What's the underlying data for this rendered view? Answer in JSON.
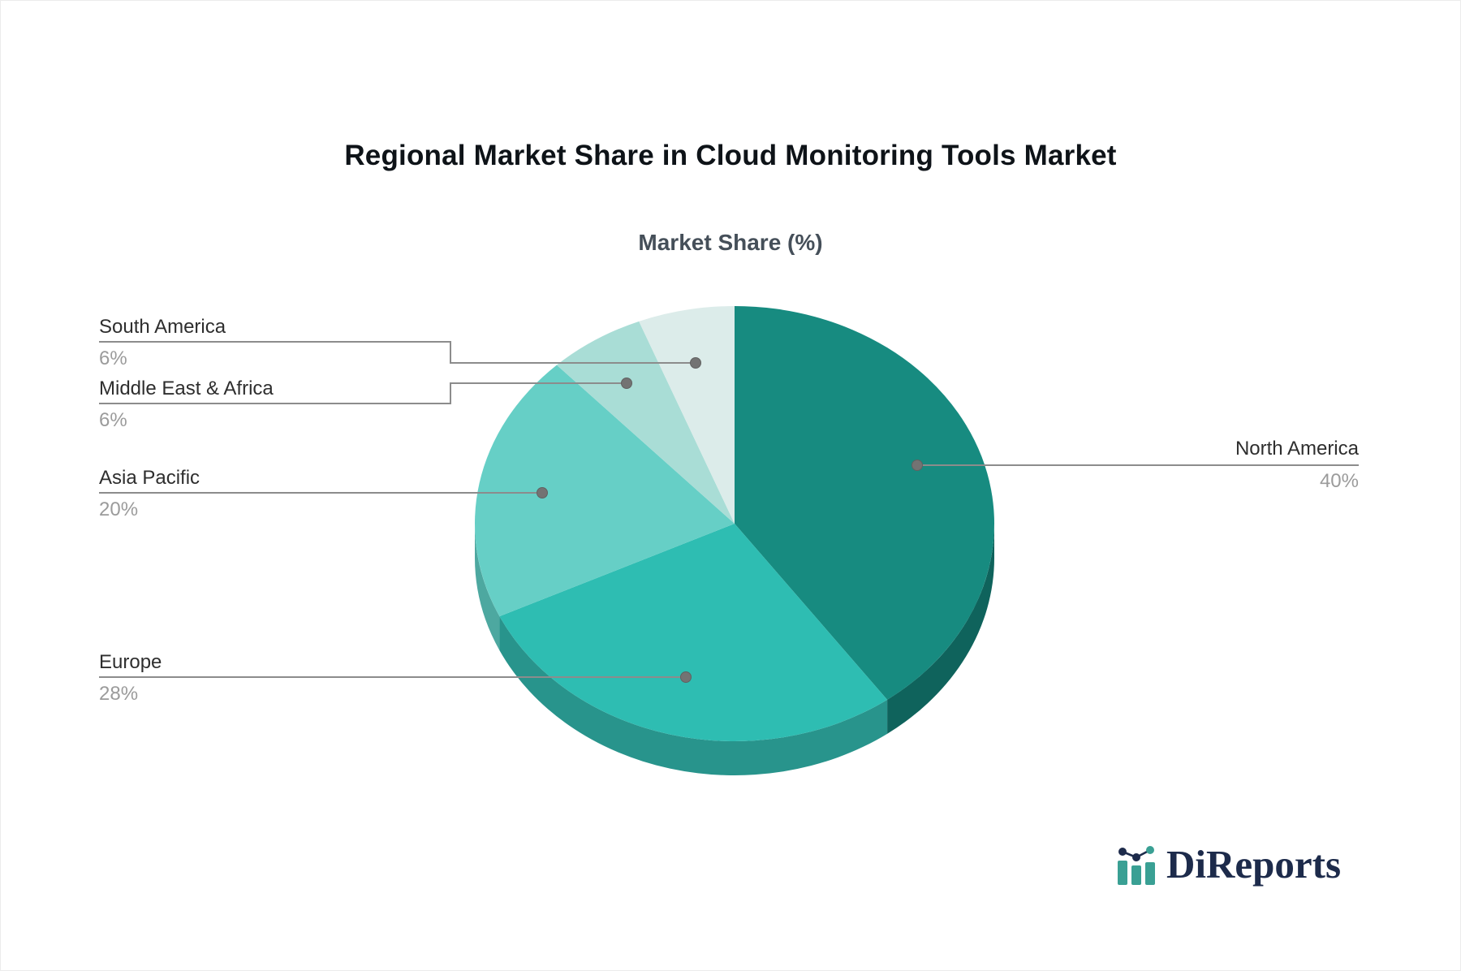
{
  "title": "Regional Market Share in Cloud Monitoring Tools Market",
  "subtitle": "Market Share (%)",
  "brand": {
    "name": "DiReports"
  },
  "palette": {
    "leader_line": "#8c8c8c",
    "marker_dot": "#737373",
    "label_text": "#2e2e2e",
    "percent_text": "#9b9b9b",
    "title_text": "#0e1318",
    "subtitle_text": "#454f59",
    "brand_navy": "#1d2b4b",
    "brand_teal": "#3aa094"
  },
  "chart_data": {
    "type": "pie",
    "style": "3d",
    "title": "Regional Market Share in Cloud Monitoring Tools Market",
    "subtitle": "Market Share (%)",
    "unit": "%",
    "start_angle_deg": 0,
    "direction": "clockwise",
    "legend": "none",
    "labels_position": "callouts",
    "slices": [
      {
        "label": "North America",
        "value": 40,
        "pct": "40%",
        "color": "#178b80",
        "side": "#0f635c"
      },
      {
        "label": "Europe",
        "value": 28,
        "pct": "28%",
        "color": "#2ebdb2",
        "side": "#28948c"
      },
      {
        "label": "Asia Pacific",
        "value": 20,
        "pct": "20%",
        "color": "#66cfc6",
        "side": "#4da8a0"
      },
      {
        "label": "Middle East & Africa",
        "value": 6,
        "pct": "6%",
        "color": "#a9ddd6",
        "side": "#8cc5bd"
      },
      {
        "label": "South America",
        "value": 6,
        "pct": "6%",
        "color": "#dcecea",
        "side": "#c5ddd8"
      }
    ]
  }
}
